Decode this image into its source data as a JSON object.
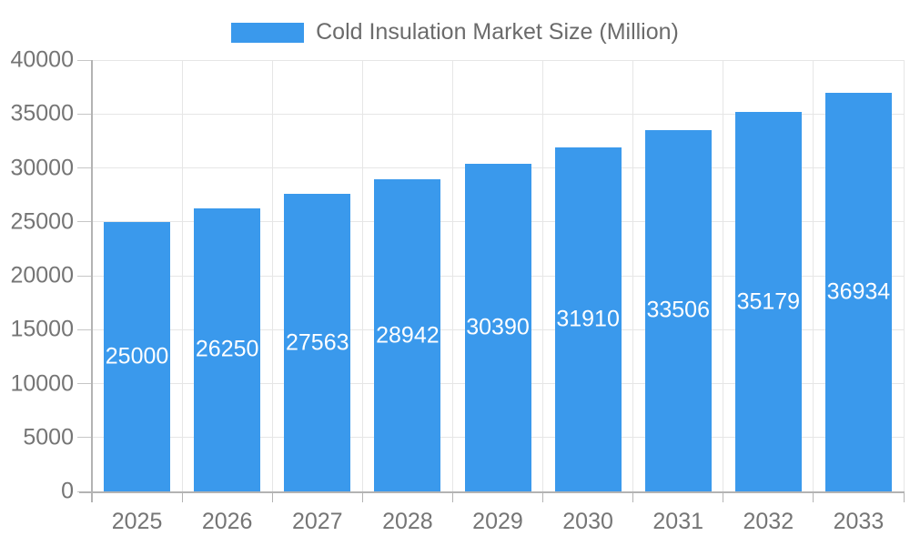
{
  "chart_data": {
    "type": "bar",
    "title": "Cold Insulation Market Size (Million)",
    "categories": [
      "2025",
      "2026",
      "2027",
      "2028",
      "2029",
      "2030",
      "2031",
      "2032",
      "2033"
    ],
    "series": [
      {
        "name": "Cold Insulation Market Size (Million)",
        "values": [
          25000,
          26250,
          27563,
          28942,
          30390,
          31910,
          33506,
          35179,
          36934
        ]
      }
    ],
    "xlabel": "",
    "ylabel": "",
    "ylim": [
      0,
      40000
    ],
    "y_ticks": [
      0,
      5000,
      10000,
      15000,
      20000,
      25000,
      30000,
      35000,
      40000
    ],
    "grid": "both",
    "legend_position": "top-center",
    "value_label_position": "inside-center",
    "colors": {
      "bar": "#3a99ec",
      "value_label": "#ffffff",
      "axis_label": "#757575",
      "legend_label": "#6b6b6b",
      "gridline": "#e6e6e6",
      "axis_line": "#b3b3b3",
      "background": "#ffffff"
    }
  }
}
